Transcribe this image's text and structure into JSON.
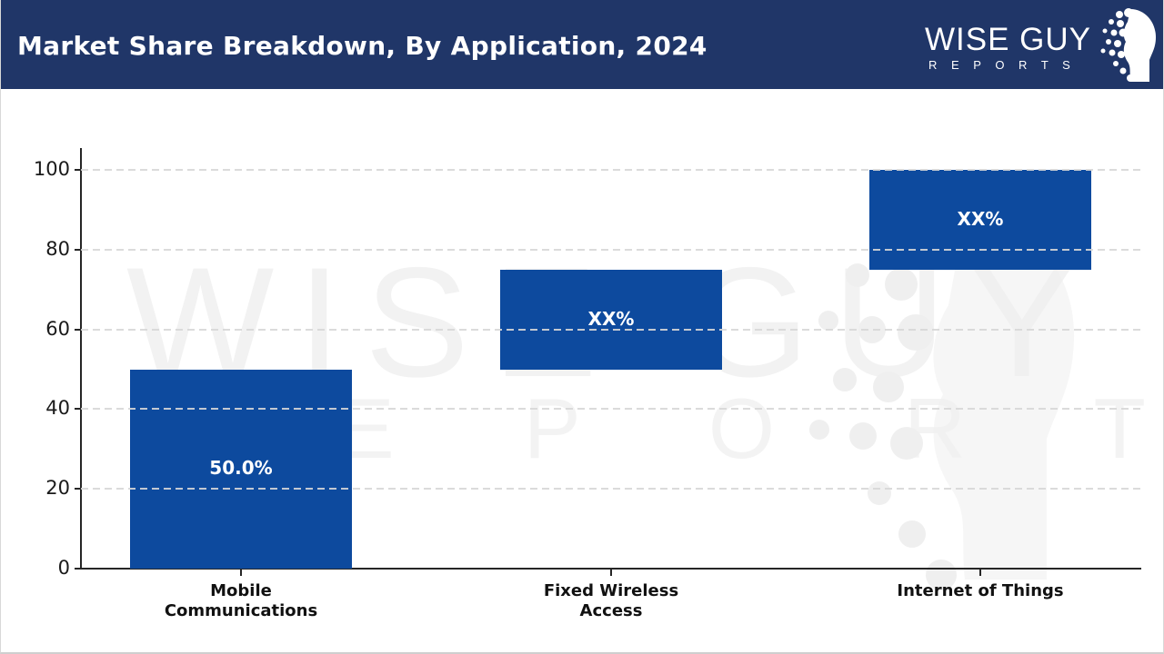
{
  "header": {
    "title": "Market Share Breakdown, By Application, 2024",
    "logo": {
      "wordmark": "WISE GUY",
      "subtext": "R E P O R T S",
      "head_icon": "dotted-face-profile"
    }
  },
  "watermark": {
    "line1": "WISE GUY",
    "line2": "R E P O R T S",
    "head_icon": "dotted-face-profile-faint"
  },
  "chart_data": {
    "type": "bar",
    "subtype": "floating-segment-waterfall",
    "title": "Market Share Breakdown, By Application, 2024",
    "categories": [
      "Mobile Communications",
      "Fixed Wireless Access",
      "Internet of Things"
    ],
    "category_label_lines": [
      [
        "Mobile",
        "Communications"
      ],
      [
        "Fixed Wireless",
        "Access"
      ],
      [
        "Internet of Things"
      ]
    ],
    "segments": [
      {
        "category": "Mobile Communications",
        "from": 0,
        "to": 50,
        "label": "50.0%"
      },
      {
        "category": "Fixed Wireless Access",
        "from": 50,
        "to": 75,
        "label": "XX%"
      },
      {
        "category": "Internet of Things",
        "from": 75,
        "to": 100,
        "label": "XX%"
      }
    ],
    "xlabel": "",
    "ylabel": "",
    "ylim": [
      0,
      100
    ],
    "yticks": [
      0,
      20,
      40,
      60,
      80,
      100
    ],
    "grid": "dashed-horizontal",
    "legend": "none",
    "bar_color": "#0d4a9e",
    "bar_label_color": "#ffffff"
  },
  "colors": {
    "header_bg": "#203668",
    "bar": "#0d4a9e",
    "axis": "#262626",
    "tick_text": "#1a1a1a",
    "grid": "#d7d7d7",
    "watermark": "#f2f2f2",
    "on_bar_text": "#ffffff"
  }
}
